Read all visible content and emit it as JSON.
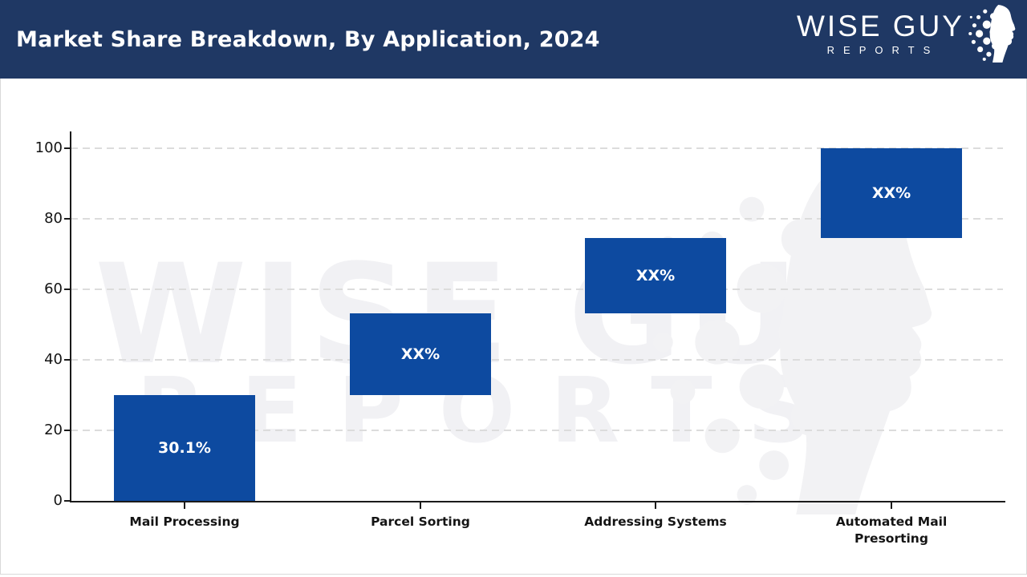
{
  "header": {
    "title": "Market Share Breakdown, By Application, 2024",
    "logo": {
      "line1": "WISE GUY",
      "line2": "REPORTS"
    }
  },
  "watermark": {
    "line1": "WISE GUY",
    "line2": "REPORTS"
  },
  "colors": {
    "header_bg": "#1f3864",
    "bar": "#0d4aa0",
    "watermark": "#f1f1f4",
    "grid": "#dcdcdc",
    "axis": "#1a1a1a",
    "bar_label": "#ffffff"
  },
  "chart_data": {
    "type": "bar",
    "subtype": "waterfall",
    "title": "Market Share Breakdown, By Application, 2024",
    "categories": [
      "Mail Processing",
      "Parcel Sorting",
      "Addressing Systems",
      "Automated Mail Presorting"
    ],
    "segments": [
      {
        "category": "Mail Processing",
        "start": 0,
        "end": 30.1,
        "label": "30.1%"
      },
      {
        "category": "Parcel Sorting",
        "start": 30.1,
        "end": 53.2,
        "label": "XX%"
      },
      {
        "category": "Addressing Systems",
        "start": 53.2,
        "end": 74.6,
        "label": "XX%"
      },
      {
        "category": "Automated Mail Presorting",
        "start": 74.6,
        "end": 100,
        "label": "XX%"
      }
    ],
    "xlabel": "",
    "ylabel": "",
    "ylim": [
      0,
      100
    ],
    "yticks": [
      0,
      20,
      40,
      60,
      80,
      100
    ],
    "grid": "horizontal-dashed",
    "legend": "none",
    "bar_color": "#0d4aa0"
  }
}
